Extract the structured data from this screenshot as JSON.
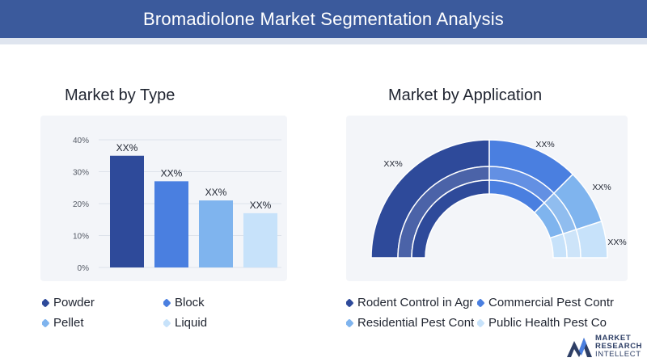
{
  "header": {
    "title": "Bromadiolone Market Segmentation Analysis"
  },
  "sections": {
    "type_title": "Market by Type",
    "application_title": "Market by Application"
  },
  "chart_data": [
    {
      "type": "bar",
      "categories": [
        "Powder",
        "Block",
        "Pellet",
        "Liquid"
      ],
      "values": [
        35,
        27,
        21,
        17
      ],
      "data_labels": [
        "XX%",
        "XX%",
        "XX%",
        "XX%"
      ],
      "ylim": [
        0,
        40
      ],
      "yticks": [
        "0%",
        "10%",
        "20%",
        "30%",
        "40%"
      ],
      "colors": [
        "#2e4a9a",
        "#4a7fe0",
        "#7fb4ee",
        "#c7e2fa"
      ],
      "grid": true,
      "legend": {
        "placement": "bottom",
        "items": [
          "Powder",
          "Block",
          "Pellet",
          "Liquid"
        ]
      }
    },
    {
      "type": "pie",
      "subtype": "half-donut",
      "categories": [
        "Rodent Control in Agr",
        "Commercial Pest Contr",
        "Residential Pest Cont",
        "Public Health Pest Co"
      ],
      "values": [
        50,
        25,
        15,
        10
      ],
      "data_labels": [
        "XX%",
        "XX%",
        "XX%",
        "XX%"
      ],
      "colors": [
        "#2e4a9a",
        "#4a7fe0",
        "#7fb4ee",
        "#c7e2fa"
      ],
      "legend": {
        "placement": "bottom",
        "items": [
          "Rodent Control in Agr",
          "Commercial Pest Contr",
          "Residential Pest Cont",
          "Public Health Pest Co"
        ]
      }
    }
  ],
  "logo": {
    "line1": "MARKET",
    "line2": "RESEARCH",
    "line3": "INTELLECT"
  }
}
